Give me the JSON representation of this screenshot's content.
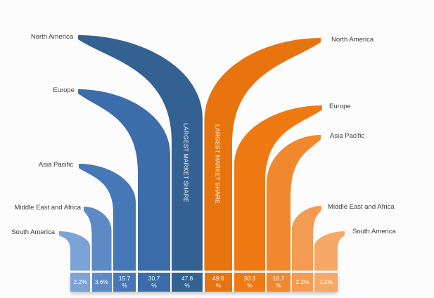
{
  "chart_data": {
    "type": "funnel",
    "title": "",
    "description": "Mirrored market-share funnel chart; left (blue) and right (orange) series sweep from region labels into vertical columns with percentage value boxes at the bottom",
    "center_labels": {
      "left": "LARGEST MARKET SHARE",
      "right": "LARGEST MARKET SHARE"
    },
    "palette": {
      "blue_dark": "#336192",
      "blue_light": "#7ba3d6",
      "orange_dark": "#e2700e",
      "orange_light": "#f6a966",
      "label_text": "#3d3d3d",
      "value_text": "#ffffff"
    },
    "left_series": {
      "name": "left-blue",
      "items": [
        {
          "region": "South America",
          "value_pct": 2.2,
          "display": "2.2%",
          "color": "#7ba3d6"
        },
        {
          "region": "Middle East and Africa",
          "value_pct": 3.6,
          "display": "3.6%",
          "color": "#5d89c5"
        },
        {
          "region": "Asia Pacific",
          "value_pct": 15.7,
          "display": "15.7\n%",
          "color": "#4678b7"
        },
        {
          "region": "Europe",
          "value_pct": 30.7,
          "display": "30.7\n%",
          "color": "#3c6ca9"
        },
        {
          "region": "North America",
          "value_pct": 47.8,
          "display": "47.8\n%",
          "color": "#336192"
        }
      ]
    },
    "right_series": {
      "name": "right-orange",
      "items": [
        {
          "region": "North America",
          "value_pct": 49.6,
          "display": "49.6\n%",
          "color": "#e8740f"
        },
        {
          "region": "Europe",
          "value_pct": 30.3,
          "display": "30.3\n%",
          "color": "#ef7913"
        },
        {
          "region": "Asia Pacific",
          "value_pct": 16.7,
          "display": "16.7\n%",
          "color": "#f1882e"
        },
        {
          "region": "Middle East and Africa",
          "value_pct": 2.2,
          "display": "2.2%",
          "color": "#f49b53"
        },
        {
          "region": "South America",
          "value_pct": 1.2,
          "display": "1.2%",
          "color": "#f6a966"
        }
      ]
    }
  }
}
